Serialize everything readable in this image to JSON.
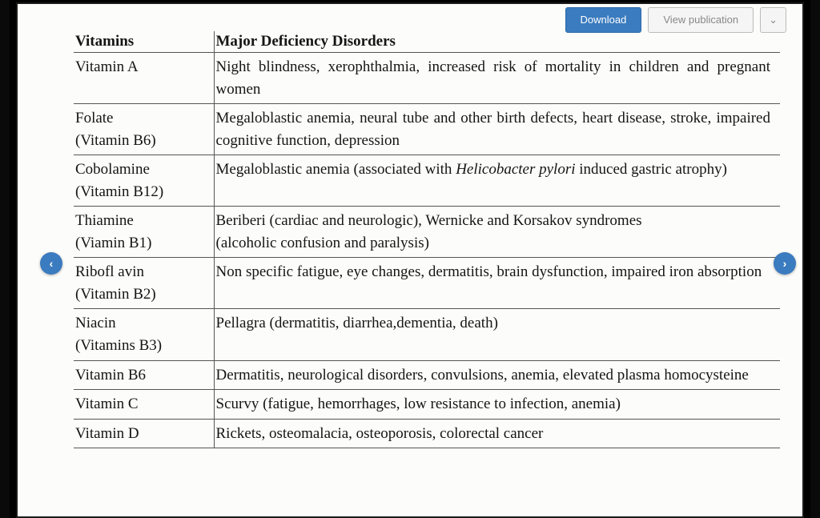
{
  "buttons": {
    "download": "Download",
    "view_pub": "View publication",
    "chevron": "⌄"
  },
  "nav": {
    "left": "‹",
    "right": "›"
  },
  "table": {
    "head_left": "Vitamins",
    "head_right": "Major Deficiency Disorders",
    "rows": [
      {
        "v": "Vitamin A",
        "d": "Night blindness, xerophthalmia, increased risk of mortality in children and pregnant women"
      },
      {
        "v": "Folate\n(Vitamin B6)",
        "d": "Megaloblastic anemia, neural tube and other birth defects, heart disease, stroke, impaired cognitive function, depression"
      },
      {
        "v": "Cobolamine\n(Vitamin B12)",
        "d_html": "Megaloblastic anemia (associated with <em class='sci'>Helicobacter pylori</em> induced gastric atrophy)"
      },
      {
        "v": "Thiamine\n(Viamin B1)",
        "d": "Beriberi (cardiac and neurologic), Wernicke and Korsakov syndromes\n(alcoholic confusion and paralysis)"
      },
      {
        "v": "Ribofl avin\n(Vitamin B2)",
        "d": "Non specific fatigue, eye changes, dermatitis, brain dysfunction, impaired iron absorption"
      },
      {
        "v": "Niacin\n(Vitamins B3)",
        "d": "Pellagra (dermatitis, diarrhea,dementia, death)"
      },
      {
        "v": "Vitamin B6",
        "d": "Dermatitis, neurological disorders, convulsions, anemia, elevated plasma homocysteine"
      },
      {
        "v": "Vitamin C",
        "d": "Scurvy (fatigue, hemorrhages, low resistance to infection, anemia)"
      },
      {
        "v": "Vitamin D",
        "d": "Rickets, osteomalacia, osteoporosis, colorectal cancer"
      }
    ]
  },
  "colors": {
    "primary": "#3b7bbf",
    "page_bg": "#fcfcfa",
    "text": "#151515",
    "rule": "#555555"
  }
}
